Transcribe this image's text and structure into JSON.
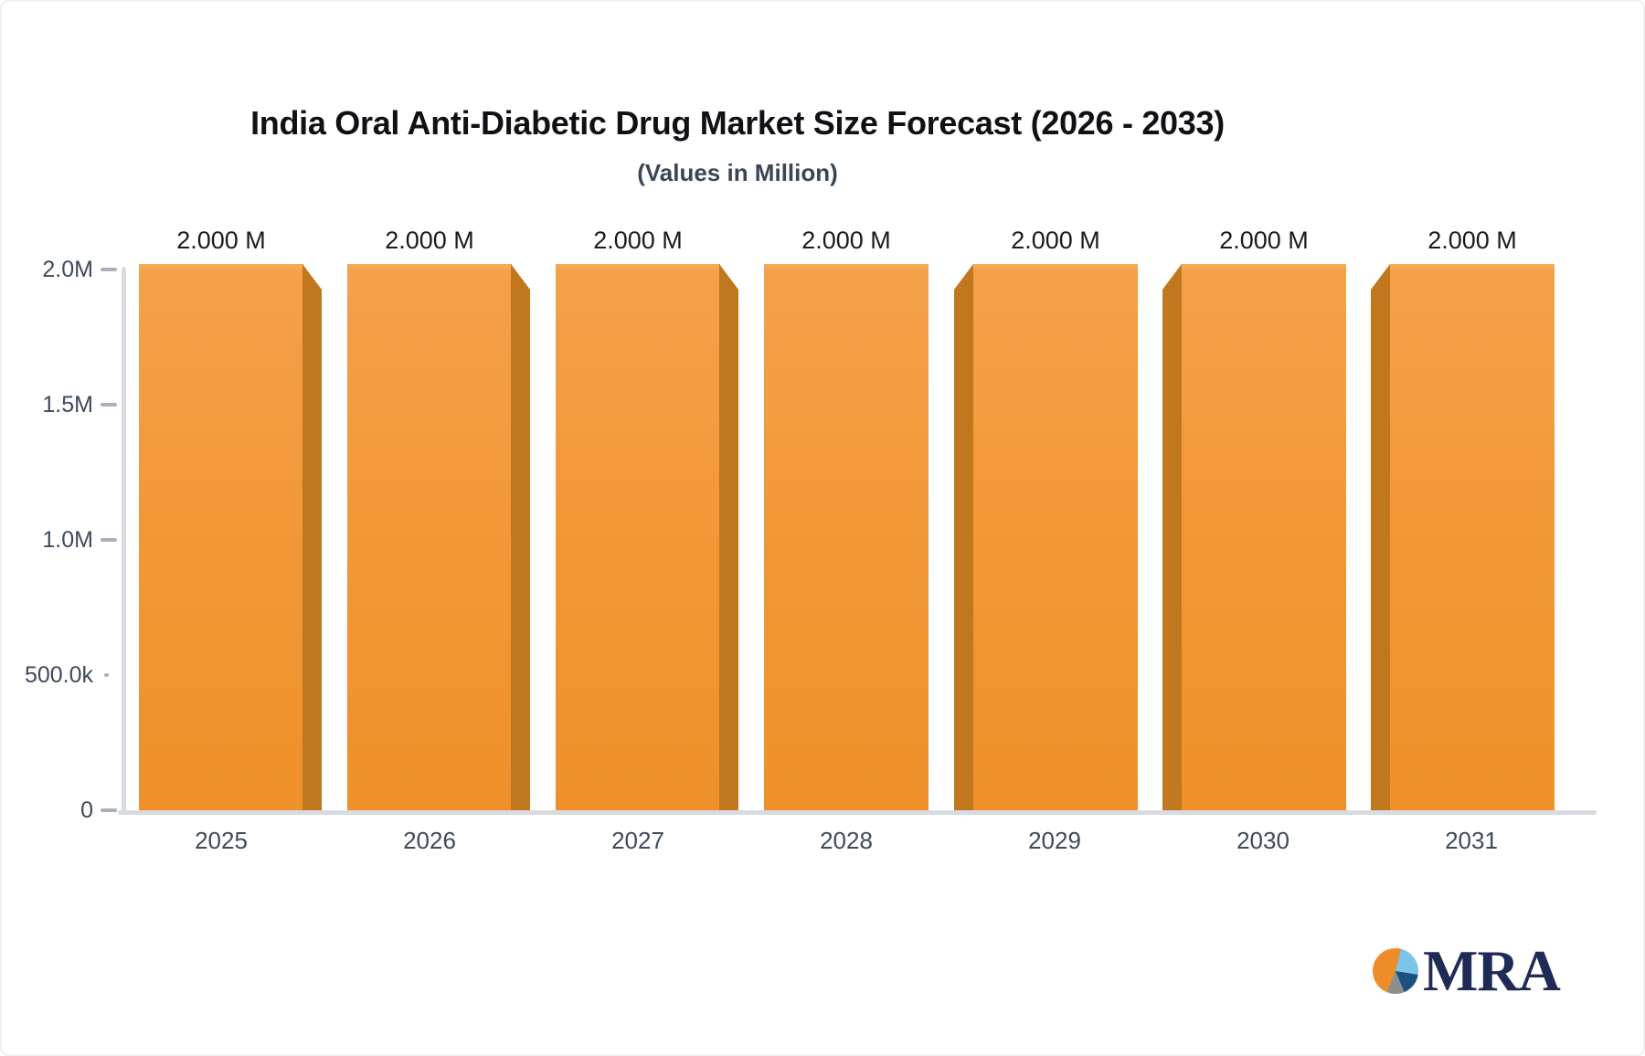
{
  "title": "India Oral Anti-Diabetic Drug Market Size Forecast (2026 - 2033)",
  "subtitle": "(Values in Million)",
  "chart_data": {
    "type": "bar",
    "categories": [
      "2025",
      "2026",
      "2027",
      "2028",
      "2029",
      "2030",
      "2031"
    ],
    "values": [
      2000000,
      2000000,
      2000000,
      2000000,
      2000000,
      2000000,
      2000000
    ],
    "bar_labels": [
      "2.000 M",
      "2.000 M",
      "2.000 M",
      "2.000 M",
      "2.000 M",
      "2.000 M",
      "2.000 M"
    ],
    "value_unit": "Million",
    "yticks": [
      "2.0M",
      "1.5M",
      "1.0M",
      "500.0k",
      "0"
    ],
    "ylim": [
      0,
      2000000
    ],
    "grid": false,
    "legend": "none",
    "style": "3d-bars, sides face toward center bar",
    "colors": {
      "bar_face_top": "#F4A14A",
      "bar_face_bottom": "#EF9029",
      "bar_top_highlight": "#F5AA58",
      "bar_side": "#C0771E",
      "axis_line": "#D7DBE1",
      "tick": "#A9B0BA",
      "axis_text": "#3E4A5C",
      "value_text": "#1B1B1B",
      "title_text": "#0F1115",
      "subtitle_text": "#3A4556"
    }
  },
  "branding": {
    "logo_text": "MRA",
    "logo_colors": {
      "logo_orange": "#EE8C2A",
      "logo_lightblue": "#7EC3E8",
      "logo_navy": "#1B517E",
      "logo_gray": "#8D8D90",
      "logo_navy_text": "#1F2B56"
    }
  }
}
